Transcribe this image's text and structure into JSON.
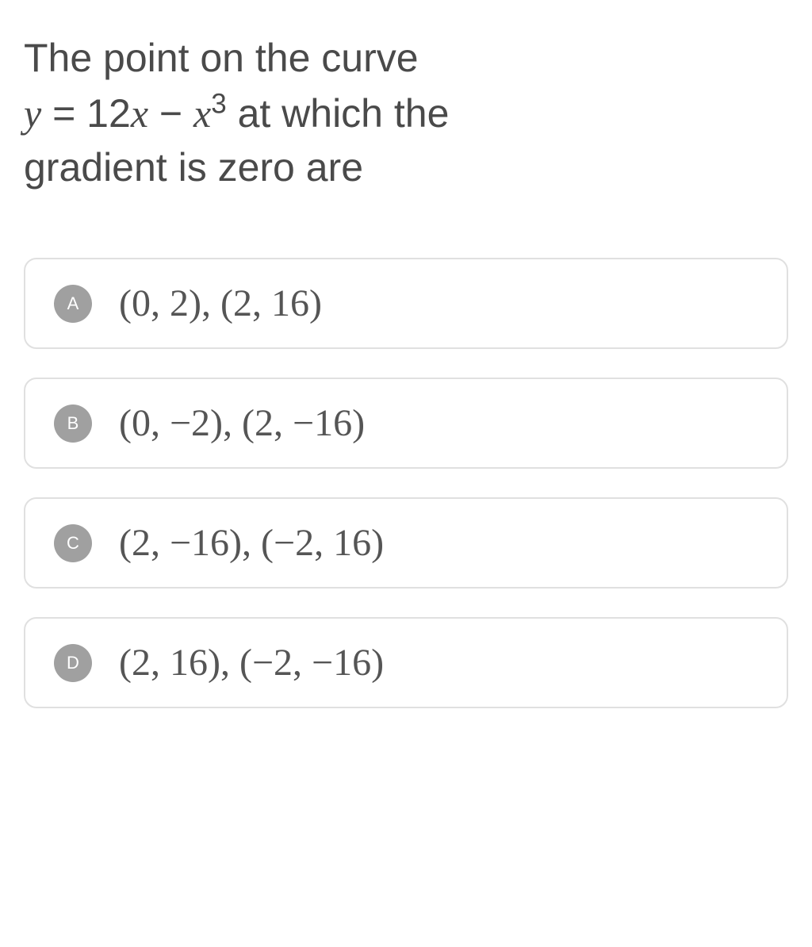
{
  "question": {
    "line1": "The point on the curve",
    "equation_html": "<span class='math'>y</span> = 12<span class='math'>x</span> &minus; <span class='math'>x</span><span class='math-sup'>3</span> at which the",
    "line3": "gradient is zero are",
    "text_color": "#4a4a4a",
    "fontsize": 50
  },
  "options": [
    {
      "letter": "A",
      "text": "(0, 2),  (2, 16)"
    },
    {
      "letter": "B",
      "text": "(0, −2),  (2, −16)"
    },
    {
      "letter": "C",
      "text": "(2, −16),  (−2, 16)"
    },
    {
      "letter": "D",
      "text": "(2, 16),  (−2, −16)"
    }
  ],
  "styles": {
    "badge_bg": "#a0a0a0",
    "badge_text_color": "#ffffff",
    "option_border_color": "#e0e0e0",
    "option_border_radius": 16,
    "option_text_color": "#555555",
    "option_fontsize": 48,
    "background": "#ffffff"
  }
}
